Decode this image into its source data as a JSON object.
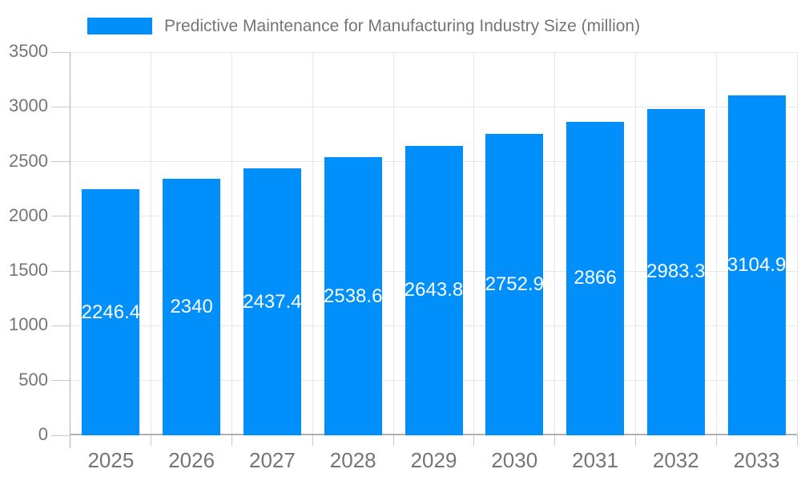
{
  "legend": {
    "label": "Predictive Maintenance for Manufacturing Industry Size (million)"
  },
  "colors": {
    "bar": "#008ffb",
    "text": "#757575",
    "grid": "#e6e6e6",
    "axis": "#b0b0b0",
    "tick": "#c9c9c9",
    "bar_label": "#ffffff",
    "background": "#ffffff"
  },
  "chart_data": {
    "type": "bar",
    "title": "Predictive Maintenance for Manufacturing Industry Size (million)",
    "categories": [
      "2025",
      "2026",
      "2027",
      "2028",
      "2029",
      "2030",
      "2031",
      "2032",
      "2033"
    ],
    "series": [
      {
        "name": "Predictive Maintenance for Manufacturing Industry Size (million)",
        "values": [
          2246.4,
          2340,
          2437.4,
          2538.6,
          2643.8,
          2752.9,
          2866,
          2983.3,
          3104.9
        ],
        "data_labels": [
          "2246.4",
          "2340",
          "2437.4",
          "2538.6",
          "2643.8",
          "2752.9",
          "2866",
          "2983.3",
          "3104.9"
        ],
        "color": "#008ffb"
      }
    ],
    "xlabel": "",
    "ylabel": "",
    "ylim": [
      0,
      3500
    ],
    "yticks": [
      0,
      500,
      1000,
      1500,
      2000,
      2500,
      3000,
      3500
    ],
    "ytick_labels": [
      "0",
      "500",
      "1000",
      "1500",
      "2000",
      "2500",
      "3000",
      "3500"
    ],
    "grid": true,
    "legend_position": "top",
    "bar_label_position": "inside-center"
  }
}
